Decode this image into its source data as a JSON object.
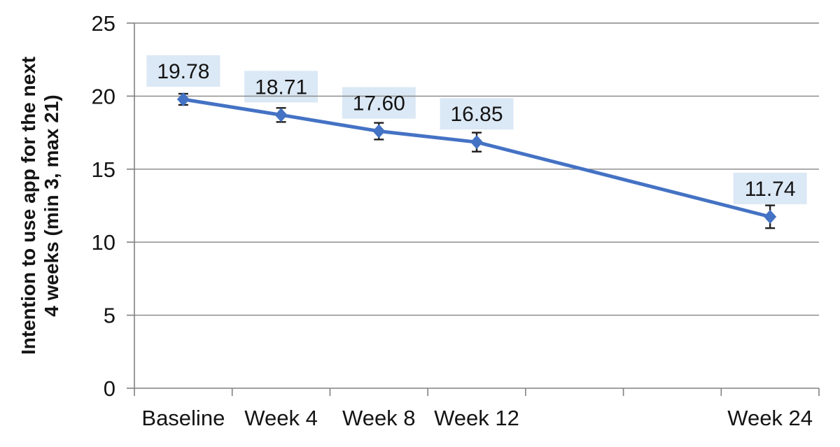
{
  "chart_data": {
    "type": "line",
    "title": "",
    "categories": [
      "Baseline",
      "Week 4",
      "Week 8",
      "Week 12",
      "Week 24"
    ],
    "x_weeks": [
      0,
      4,
      8,
      12,
      24
    ],
    "series": [
      {
        "name": "Intention to use app",
        "values": [
          19.78,
          18.71,
          17.6,
          16.85,
          11.74
        ],
        "errors": [
          0.38,
          0.48,
          0.57,
          0.65,
          0.78
        ]
      }
    ],
    "data_labels": [
      "19.78",
      "18.71",
      "17.60",
      "16.85",
      "11.74"
    ],
    "ylabel_line1": "Intention to use app for the next",
    "ylabel_line2": "4 weeks (min 3, max 21)",
    "xlabel": "",
    "ylim": [
      0,
      25
    ],
    "ytick_step": 5,
    "yticks": [
      "0",
      "5",
      "10",
      "15",
      "20",
      "25"
    ],
    "x_axis": {
      "min_week": 0,
      "max_week": 24,
      "slot_weeks": 4,
      "num_slots": 7
    },
    "grid": "horizontal",
    "legend": "none",
    "marker": "diamond",
    "colors": {
      "line": "#4472C4",
      "marker": "#4472C4",
      "error_bar": "#1f1f1f",
      "grid": "#868686",
      "axis": "#808080",
      "label_bg": "#DBE8F5",
      "text": "#141414"
    }
  }
}
